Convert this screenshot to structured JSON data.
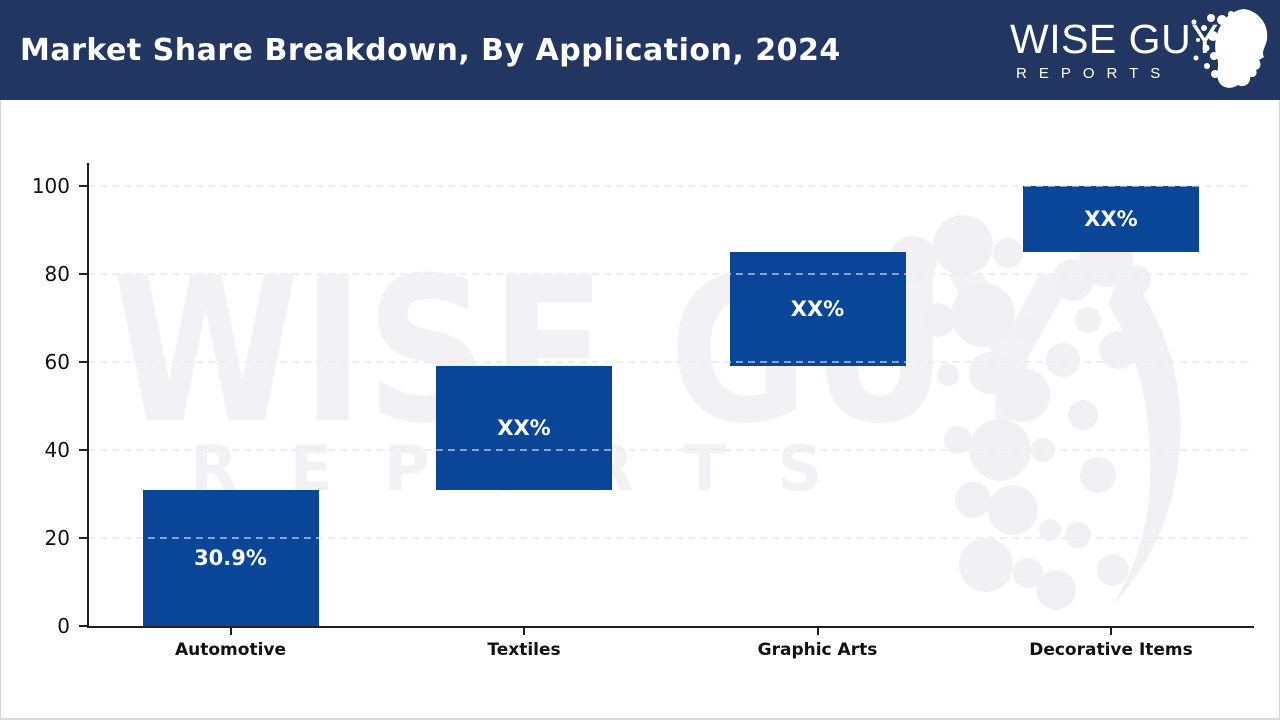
{
  "header": {
    "title": "Market Share Breakdown, By Application, 2024",
    "bg_color": "#213761",
    "logo": {
      "line1": "WISE GUY",
      "line2": "REPORTS"
    }
  },
  "watermark": {
    "line1": "WISE GUY",
    "line2": "REPORTS"
  },
  "chart_data": {
    "type": "bar",
    "subtype": "waterfall",
    "title": "Market Share Breakdown, By Application, 2024",
    "xlabel": "",
    "ylabel": "",
    "categories": [
      "Automotive",
      "Textiles",
      "Graphic Arts",
      "Decorative Items"
    ],
    "segments": [
      {
        "category": "Automotive",
        "start": 0,
        "end": 30.9,
        "label": "30.9%"
      },
      {
        "category": "Textiles",
        "start": 30.9,
        "end": 59.1,
        "label": "XX%"
      },
      {
        "category": "Graphic Arts",
        "start": 59.1,
        "end": 85.0,
        "label": "XX%"
      },
      {
        "category": "Decorative Items",
        "start": 85.0,
        "end": 100.0,
        "label": "XX%"
      }
    ],
    "yticks": [
      0,
      20,
      40,
      60,
      80,
      100
    ],
    "ylim": [
      0,
      105
    ],
    "grid": true,
    "grid_style": "dashed",
    "legend": false,
    "bar_color": "#0a4697",
    "bar_label_color": "#ffffff"
  }
}
